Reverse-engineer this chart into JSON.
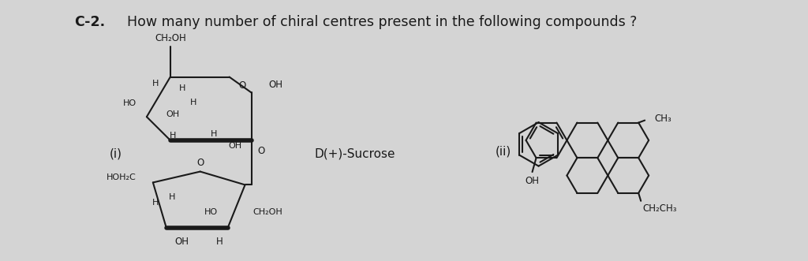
{
  "bg_color": "#d4d4d4",
  "title_label": "C-2.",
  "question_text": "How many number of chiral centres present in the following compounds ?",
  "label_i": "(i)",
  "label_ii": "(ii)",
  "label_sucrose": "D(+)-Sucrose",
  "text_color": "#1a1a1a",
  "line_color": "#1a1a1a",
  "font_size_question": 12.5,
  "font_size_label": 11,
  "font_size_atom": 8.5,
  "font_size_small": 7.5
}
